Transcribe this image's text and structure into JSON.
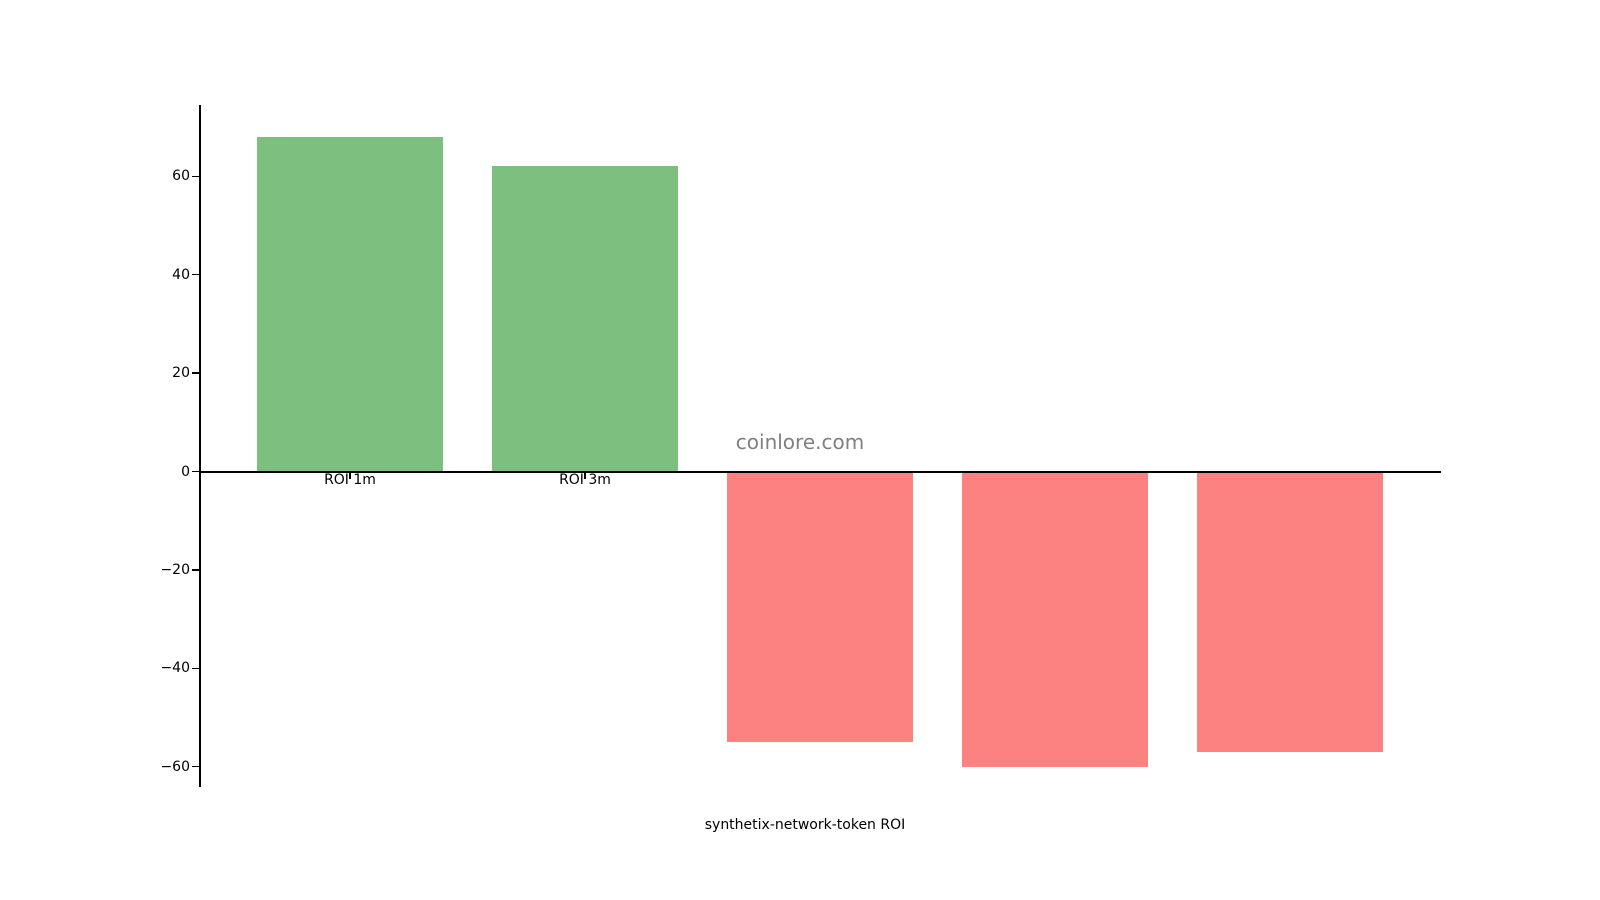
{
  "watermark": {
    "text": "coinlore.com",
    "color": "#808080"
  },
  "title": {
    "text": "synthetix-network-token ROI"
  },
  "chart_data": {
    "type": "bar",
    "title": "synthetix-network-token ROI",
    "categories": [
      "ROI 1m",
      "ROI 3m",
      "",
      "",
      ""
    ],
    "values": [
      68,
      62,
      -55,
      -60,
      -57
    ],
    "series": [
      {
        "name": "ROI",
        "values": [
          68,
          62,
          -55,
          -60,
          -57
        ]
      }
    ],
    "bar_color_positive": "#7cbf7e",
    "bar_color_negative": "#fc8181",
    "y_ticks": [
      60,
      40,
      20,
      0,
      -20,
      -40,
      -60
    ],
    "y_tick_labels": [
      "60",
      "40",
      "20",
      "0",
      "−20",
      "−40",
      "−60"
    ],
    "ylim": [
      -64,
      74.5
    ],
    "xlabel": "",
    "ylabel": "",
    "grid": false,
    "legend_position": "none",
    "axis_color": "#000000",
    "watermark": "coinlore.com"
  }
}
